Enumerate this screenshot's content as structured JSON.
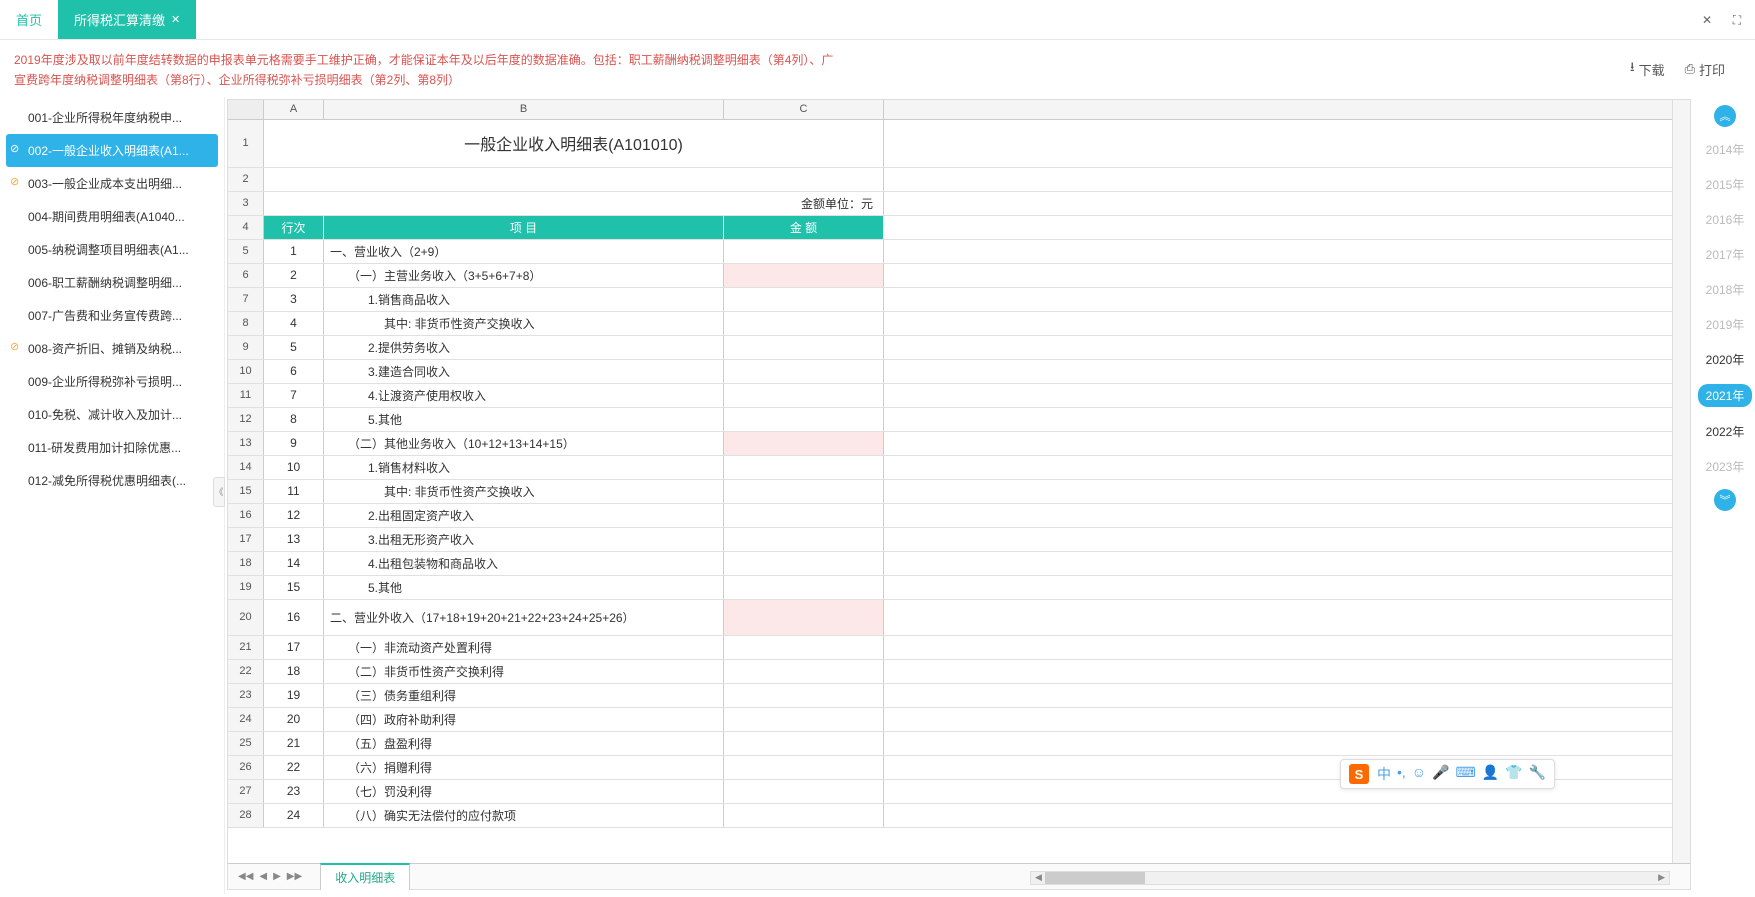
{
  "tabs": {
    "home": "首页",
    "active": "所得税汇算清缴"
  },
  "warning": "2019年度涉及取以前年度结转数据的申报表单元格需要手工维护正确，才能保证本年及以后年度的数据准确。包括：职工薪酬纳税调整明细表（第4列）、广宣费跨年度纳税调整明细表（第8行）、企业所得税弥补亏损明细表（第2列、第8列）",
  "actions": {
    "download": "下载",
    "print": "打印"
  },
  "sidebar": [
    {
      "label": "001-企业所得税年度纳税申...",
      "flag": false
    },
    {
      "label": "002-一般企业收入明细表(A1...",
      "flag": true,
      "selected": true
    },
    {
      "label": "003-一般企业成本支出明细...",
      "flag": true
    },
    {
      "label": "004-期间费用明细表(A1040...",
      "flag": false
    },
    {
      "label": "005-纳税调整项目明细表(A1...",
      "flag": false
    },
    {
      "label": "006-职工薪酬纳税调整明细...",
      "flag": false
    },
    {
      "label": "007-广告费和业务宣传费跨...",
      "flag": false
    },
    {
      "label": "008-资产折旧、摊销及纳税...",
      "flag": true
    },
    {
      "label": "009-企业所得税弥补亏损明...",
      "flag": false
    },
    {
      "label": "010-免税、减计收入及加计...",
      "flag": false
    },
    {
      "label": "011-研发费用加计扣除优惠...",
      "flag": false
    },
    {
      "label": "012-减免所得税优惠明细表(...",
      "flag": false
    }
  ],
  "sheet": {
    "title": "一般企业收入明细表(A101010)",
    "unit": "金额单位：元",
    "columns": {
      "a": "行次",
      "b": "项  目",
      "c": "金  额"
    },
    "tab": "收入明细表"
  },
  "rows": [
    {
      "n": "1",
      "b": "一、营业收入（2+9）",
      "indent": 0,
      "pink": false
    },
    {
      "n": "2",
      "b": "（一）主营业务收入（3+5+6+7+8）",
      "indent": 1,
      "pink": true
    },
    {
      "n": "3",
      "b": "1.销售商品收入",
      "indent": 2,
      "pink": false
    },
    {
      "n": "4",
      "b": "其中: 非货币性资产交换收入",
      "indent": 3,
      "pink": false
    },
    {
      "n": "5",
      "b": "2.提供劳务收入",
      "indent": 2,
      "pink": false
    },
    {
      "n": "6",
      "b": "3.建造合同收入",
      "indent": 2,
      "pink": false
    },
    {
      "n": "7",
      "b": "4.让渡资产使用权收入",
      "indent": 2,
      "pink": false
    },
    {
      "n": "8",
      "b": "5.其他",
      "indent": 2,
      "pink": false
    },
    {
      "n": "9",
      "b": "（二）其他业务收入（10+12+13+14+15）",
      "indent": 1,
      "pink": true
    },
    {
      "n": "10",
      "b": "1.销售材料收入",
      "indent": 2,
      "pink": false
    },
    {
      "n": "11",
      "b": "其中: 非货币性资产交换收入",
      "indent": 3,
      "pink": false
    },
    {
      "n": "12",
      "b": "2.出租固定资产收入",
      "indent": 2,
      "pink": false
    },
    {
      "n": "13",
      "b": "3.出租无形资产收入",
      "indent": 2,
      "pink": false
    },
    {
      "n": "14",
      "b": "4.出租包装物和商品收入",
      "indent": 2,
      "pink": false
    },
    {
      "n": "15",
      "b": "5.其他",
      "indent": 2,
      "pink": false
    },
    {
      "n": "16",
      "b": "二、营业外收入（17+18+19+20+21+22+23+24+25+26）",
      "indent": 0,
      "pink": true,
      "tall": true
    },
    {
      "n": "17",
      "b": "（一）非流动资产处置利得",
      "indent": 1,
      "pink": false
    },
    {
      "n": "18",
      "b": "（二）非货币性资产交换利得",
      "indent": 1,
      "pink": false
    },
    {
      "n": "19",
      "b": "（三）债务重组利得",
      "indent": 1,
      "pink": false
    },
    {
      "n": "20",
      "b": "（四）政府补助利得",
      "indent": 1,
      "pink": false
    },
    {
      "n": "21",
      "b": "（五）盘盈利得",
      "indent": 1,
      "pink": false
    },
    {
      "n": "22",
      "b": "（六）捐赠利得",
      "indent": 1,
      "pink": false
    },
    {
      "n": "23",
      "b": "（七）罚没利得",
      "indent": 1,
      "pink": false
    },
    {
      "n": "24",
      "b": "（八）确实无法偿付的应付款项",
      "indent": 1,
      "pink": false
    }
  ],
  "years": [
    {
      "y": "2014年",
      "state": "dim"
    },
    {
      "y": "2015年",
      "state": "dim"
    },
    {
      "y": "2016年",
      "state": "dim"
    },
    {
      "y": "2017年",
      "state": "dim"
    },
    {
      "y": "2018年",
      "state": "dim"
    },
    {
      "y": "2019年",
      "state": "dim"
    },
    {
      "y": "2020年",
      "state": "dark"
    },
    {
      "y": "2021年",
      "state": "active"
    },
    {
      "y": "2022年",
      "state": "dark"
    },
    {
      "y": "2023年",
      "state": "dim"
    }
  ],
  "ime": {
    "logo": "S",
    "text": "中"
  }
}
